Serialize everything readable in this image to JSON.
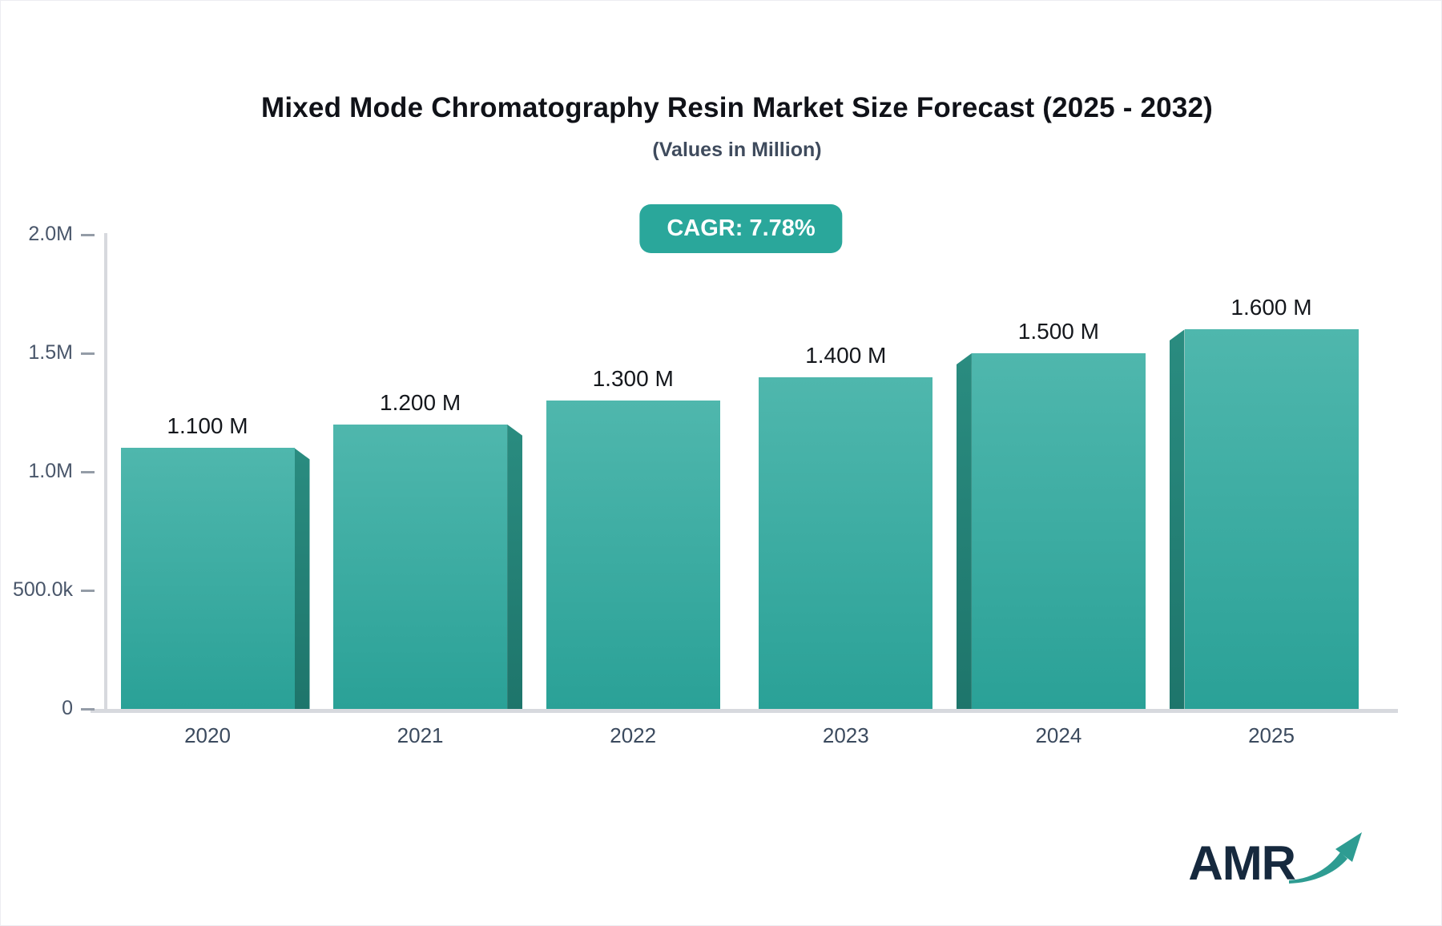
{
  "header": {
    "title": "Mixed Mode Chromatography Resin Market Size Forecast (2025 - 2032)",
    "subtitle": "(Values in Million)",
    "cagr_label": "CAGR: 7.78%"
  },
  "chart_data": {
    "type": "bar",
    "title": "Mixed Mode Chromatography Resin Market Size Forecast (2025 - 2032)",
    "subtitle": "(Values in Million)",
    "unit": "Million",
    "cagr": "7.78%",
    "categories": [
      "2020",
      "2021",
      "2022",
      "2023",
      "2024",
      "2025"
    ],
    "values": [
      1.1,
      1.2,
      1.3,
      1.4,
      1.5,
      1.6
    ],
    "value_labels": [
      "1.100 M",
      "1.200 M",
      "1.300 M",
      "1.400 M",
      "1.500 M",
      "1.600 M"
    ],
    "xlabel": "",
    "ylabel": "",
    "ylim": [
      0,
      2.0
    ],
    "y_ticks": [
      {
        "label": "2.0M",
        "value": 2.0
      },
      {
        "label": "1.5M",
        "value": 1.5
      },
      {
        "label": "1.0M",
        "value": 1.0
      },
      {
        "label": "500.0k",
        "value": 0.5
      },
      {
        "label": "0",
        "value": 0
      }
    ],
    "grid": false,
    "legend": "none",
    "bar_style": "3d-beveled"
  },
  "logo": {
    "text": "AMR"
  },
  "colors": {
    "badge_bg": "#2aa79b",
    "bar_face_top": "#4fb7ad",
    "bar_face_bottom": "#2aa197",
    "bar_side_top": "#2a8c80",
    "bar_side_bottom": "#1e756b",
    "axis_line": "#d7d9de",
    "tick_dash": "#949ca7",
    "logo_text": "#16293e",
    "logo_arrow": "#2e9c92"
  }
}
